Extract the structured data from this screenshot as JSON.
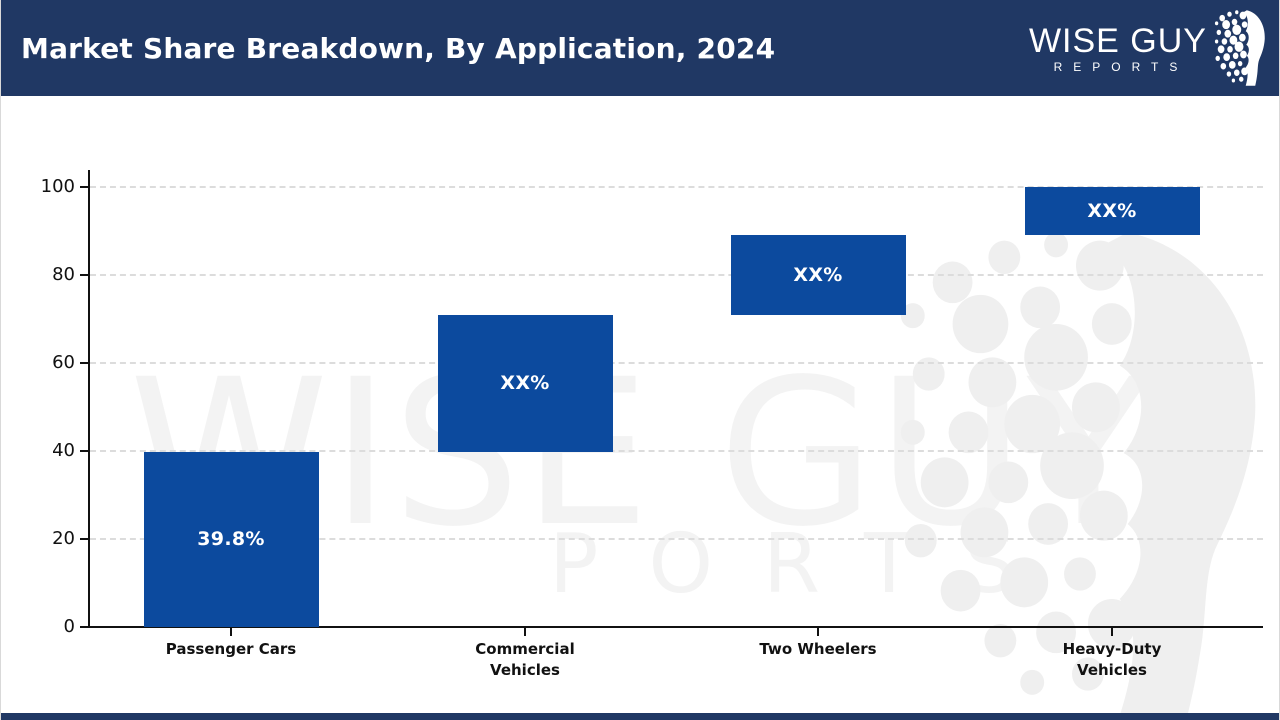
{
  "header": {
    "title": "Market Share Breakdown, By Application, 2024",
    "logo": {
      "wordmark": "WISE GUY",
      "subtext": "REPORTS"
    }
  },
  "watermark": {
    "wordmark": "WISE GUY",
    "subtext": "PORTS"
  },
  "chart_data": {
    "type": "bar",
    "subtype": "floating-waterfall",
    "title": "Market Share Breakdown, By Application, 2024",
    "categories": [
      "Passenger Cars",
      "Commercial\nVehicles",
      "Two Wheelers",
      "Heavy-Duty\nVehicles"
    ],
    "segments": [
      {
        "category": "Passenger Cars",
        "start": 0,
        "end": 39.8,
        "label": "39.8%"
      },
      {
        "category": "Commercial Vehicles",
        "start": 39.8,
        "end": 71,
        "label": "XX%"
      },
      {
        "category": "Two Wheelers",
        "start": 71,
        "end": 89,
        "label": "XX%"
      },
      {
        "category": "Heavy-Duty Vehicles",
        "start": 89,
        "end": 100,
        "label": "XX%"
      }
    ],
    "yticks": [
      0,
      20,
      40,
      60,
      80,
      100
    ],
    "ylim": [
      0,
      100
    ],
    "xlabel": "",
    "ylabel": "",
    "grid": true,
    "grid_style": "dashed",
    "legend": null,
    "bar_color": "#0c4a9e",
    "bar_label_color": "#ffffff",
    "header_color": "#203864"
  }
}
